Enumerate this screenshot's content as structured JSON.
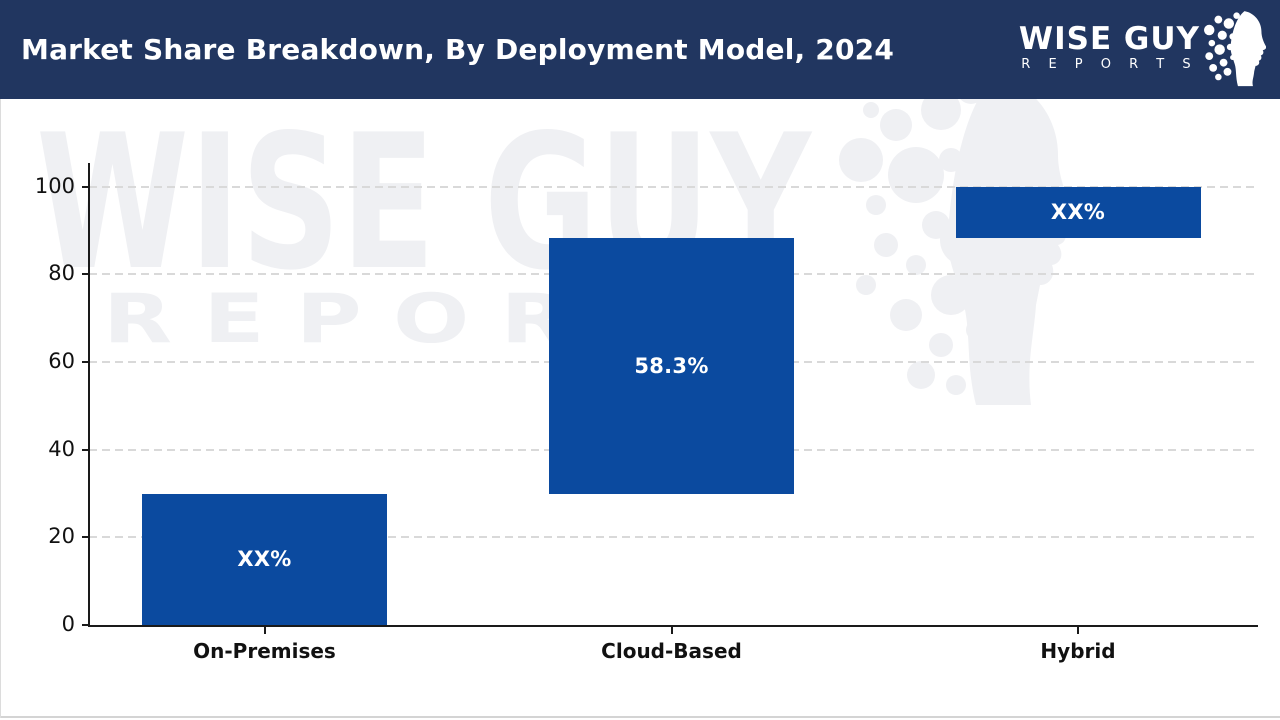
{
  "header": {
    "title": "Market Share Breakdown, By Deployment Model, 2024",
    "bg_color": "#213660",
    "logo": {
      "line1": "WISE GUY",
      "line2": "R E P O R T S"
    }
  },
  "watermark": {
    "line1": "WISE GUY",
    "line2": "R E P O R T S"
  },
  "chart_data": {
    "type": "bar",
    "subtype": "floating-segment-waterfall",
    "title": "Market Share Breakdown, By Deployment Model, 2024",
    "categories": [
      "On-Premises",
      "Cloud-Based",
      "Hybrid"
    ],
    "bars": [
      {
        "category": "On-Premises",
        "start": 0,
        "end": 29.9,
        "label": "XX%"
      },
      {
        "category": "Cloud-Based",
        "start": 29.9,
        "end": 88.2,
        "label": "58.3%"
      },
      {
        "category": "Hybrid",
        "start": 88.2,
        "end": 100,
        "label": "XX%"
      }
    ],
    "bar_color": "#0b4a9f",
    "xlabel": "",
    "ylabel": "",
    "yticks": [
      0,
      20,
      40,
      60,
      80,
      100
    ],
    "ylim": [
      0,
      105
    ],
    "grid": "horizontal-dashed",
    "gridline_color": "#d9d9d9",
    "legend": null
  }
}
